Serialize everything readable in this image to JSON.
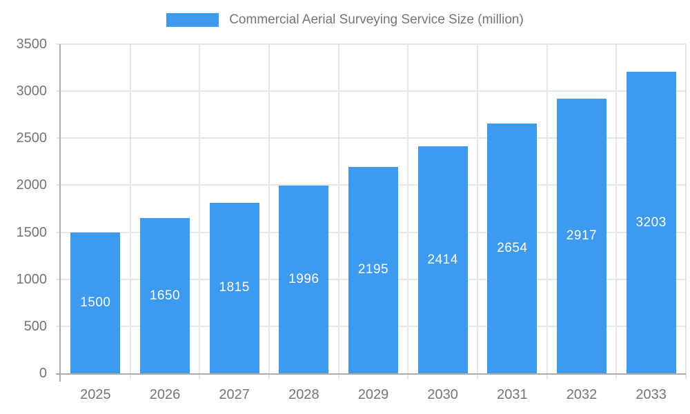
{
  "legend": {
    "label": "Commercial Aerial Surveying Service Size (million)"
  },
  "chart_data": {
    "type": "bar",
    "title": "Commercial Aerial Surveying Service Size (million)",
    "categories": [
      "2025",
      "2026",
      "2027",
      "2028",
      "2029",
      "2030",
      "2031",
      "2032",
      "2033"
    ],
    "values": [
      1500,
      1650,
      1815,
      1996,
      2195,
      2414,
      2654,
      2917,
      3203
    ],
    "xlabel": "",
    "ylabel": "",
    "ylim": [
      0,
      3500
    ],
    "yticks": [
      0,
      500,
      1000,
      1500,
      2000,
      2500,
      3000,
      3500
    ],
    "grid": true,
    "legend_position": "top-center",
    "bar_color": "#3E9AEF",
    "value_label_color": "#FFFFFF",
    "grid_color": "#E6E6E6",
    "axis_color": "#ABABAB",
    "tick_label_color": "#757575",
    "title_color": "#757575",
    "background_color": "#FFFFFF"
  }
}
